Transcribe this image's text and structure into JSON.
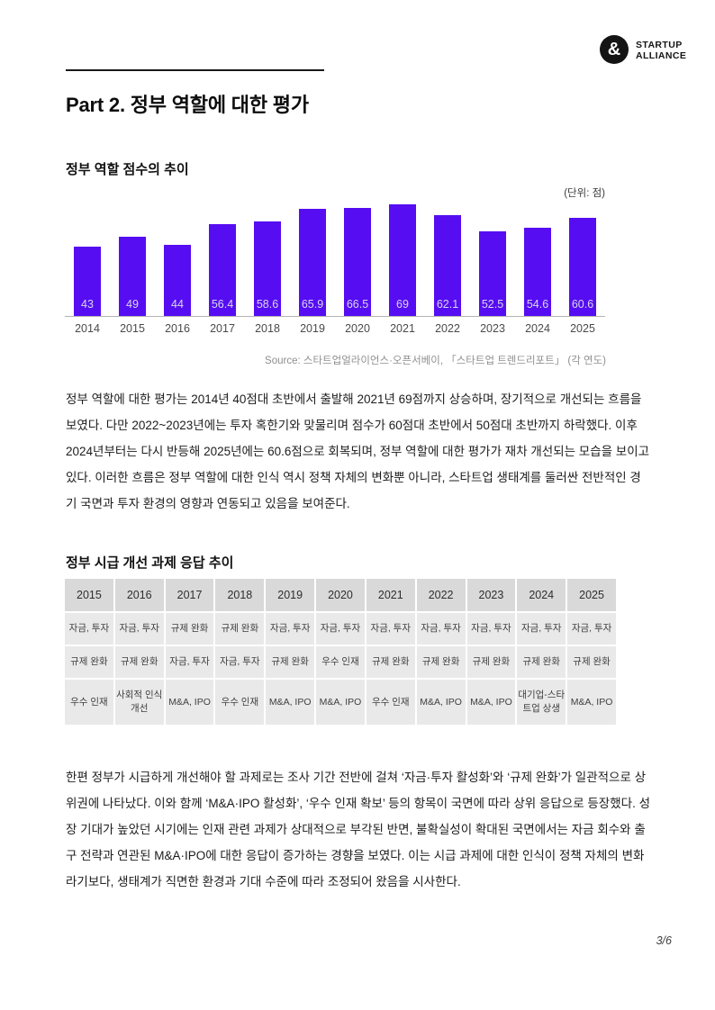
{
  "logo": {
    "symbol": "&",
    "line1": "STARTUP",
    "line2": "ALLIANCE"
  },
  "part_title": "Part 2. 정부 역할에 대한 평가",
  "chart_section": {
    "title": "정부 역할 점수의 추이",
    "unit_label": "(단위: 점)",
    "source": "Source: 스타트업얼라이언스·오픈서베이, 「스타트업 트렌드리포트」 (각 연도)"
  },
  "chart_data": {
    "type": "bar",
    "title": "정부 역할 점수의 추이",
    "categories": [
      "2014",
      "2015",
      "2016",
      "2017",
      "2018",
      "2019",
      "2020",
      "2021",
      "2022",
      "2023",
      "2024",
      "2025"
    ],
    "values": [
      43,
      49,
      44,
      56.4,
      58.6,
      65.9,
      66.5,
      69,
      62.1,
      52.5,
      54.6,
      60.6
    ],
    "value_labels": [
      "43",
      "49",
      "44",
      "56.4",
      "58.6",
      "65.9",
      "66.5",
      "69",
      "62.1",
      "52.5",
      "54.6",
      "60.6"
    ],
    "unit": "점",
    "ylim": [
      0,
      73
    ],
    "bar_color": "#560df2",
    "legend": "none",
    "grid": "off"
  },
  "paragraph1": "정부 역할에 대한 평가는 2014년 40점대 초반에서 출발해 2021년 69점까지 상승하며, 장기적으로 개선되는 흐름을 보였다. 다만 2022~2023년에는 투자 혹한기와 맞물리며 점수가 60점대 초반에서 50점대 초반까지 하락했다. 이후 2024년부터는 다시 반등해 2025년에는 60.6점으로 회복되며, 정부 역할에 대한 평가가 재차 개선되는 모습을 보이고 있다. 이러한 흐름은 정부 역할에 대한 인식 역시 정책 자체의 변화뿐 아니라, 스타트업 생태계를 둘러싼 전반적인 경기 국면과 투자 환경의 영향과 연동되고 있음을 보여준다.",
  "table_section": {
    "title": "정부 시급 개선 과제 응답 추이",
    "years": [
      "2015",
      "2016",
      "2017",
      "2018",
      "2019",
      "2020",
      "2021",
      "2022",
      "2023",
      "2024",
      "2025"
    ],
    "rows": [
      [
        "자금, 투자",
        "자금, 투자",
        "규제 완화",
        "규제 완화",
        "자금, 투자",
        "자금, 투자",
        "자금, 투자",
        "자금, 투자",
        "자금, 투자",
        "자금, 투자",
        "자금, 투자"
      ],
      [
        "규제 완화",
        "규제 완화",
        "자금, 투자",
        "자금, 투자",
        "규제 완화",
        "우수 인재",
        "규제 완화",
        "규제 완화",
        "규제 완화",
        "규제 완화",
        "규제 완화"
      ],
      [
        "우수 인재",
        "사회적 인식 개선",
        "M&A, IPO",
        "우수 인재",
        "M&A, IPO",
        "M&A, IPO",
        "우수 인재",
        "M&A, IPO",
        "M&A, IPO",
        "대기업-스타트업 상생",
        "M&A, IPO"
      ]
    ]
  },
  "paragraph2": "한편 정부가 시급하게 개선해야 할 과제로는 조사 기간 전반에 걸쳐 ‘자금·투자 활성화’와 ‘규제 완화’가 일관적으로 상위권에 나타났다. 이와 함께 ‘M&A·IPO 활성화’, ‘우수 인재 확보’ 등의 항목이 국면에 따라 상위 응답으로 등장했다. 성장 기대가 높았던 시기에는 인재 관련 과제가 상대적으로 부각된 반면, 불확실성이 확대된 국면에서는 자금 회수와 출구 전략과 연관된 M&A·IPO에 대한 응답이 증가하는 경향을 보였다. 이는 시급 과제에 대한 인식이 정책 자체의 변화라기보다, 생태계가 직면한 환경과 기대 수준에 따라 조정되어 왔음을 시사한다.",
  "page": {
    "number": "3/6"
  }
}
